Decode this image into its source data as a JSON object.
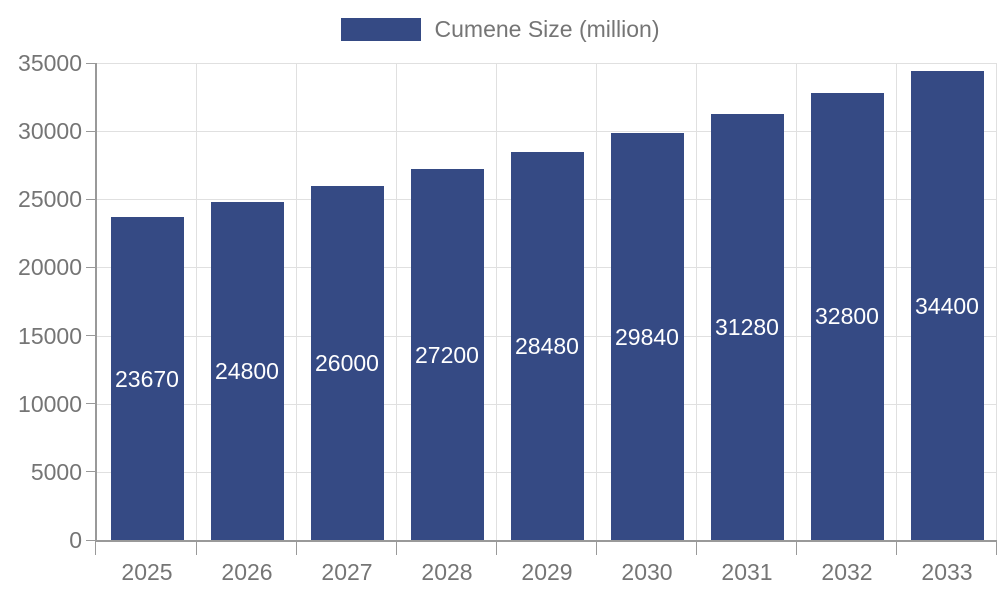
{
  "chart_data": {
    "type": "bar",
    "title": "",
    "legend": "Cumene Size (million)",
    "legend_position": "top-center",
    "categories": [
      "2025",
      "2026",
      "2027",
      "2028",
      "2029",
      "2030",
      "2031",
      "2032",
      "2033"
    ],
    "series": [
      {
        "name": "Cumene Size (million)",
        "values": [
          23670,
          24800,
          26000,
          27200,
          28480,
          29840,
          31280,
          32800,
          34400
        ]
      }
    ],
    "bar_labels": [
      "23670",
      "24800",
      "26000",
      "27200",
      "28480",
      "29840",
      "31280",
      "32800",
      "34400"
    ],
    "xlabel": "",
    "ylabel": "",
    "ylim": [
      0,
      35000
    ],
    "y_ticks": [
      0,
      5000,
      10000,
      15000,
      20000,
      25000,
      30000,
      35000
    ],
    "grid": true,
    "colors": {
      "bar": "#354A84",
      "bar_label_text": "#FFFFFF",
      "axis_line": "#999999",
      "grid_line": "#E0E0E0",
      "tick_label_text": "#757575",
      "legend_text": "#757575",
      "background": "#FFFFFF"
    }
  }
}
